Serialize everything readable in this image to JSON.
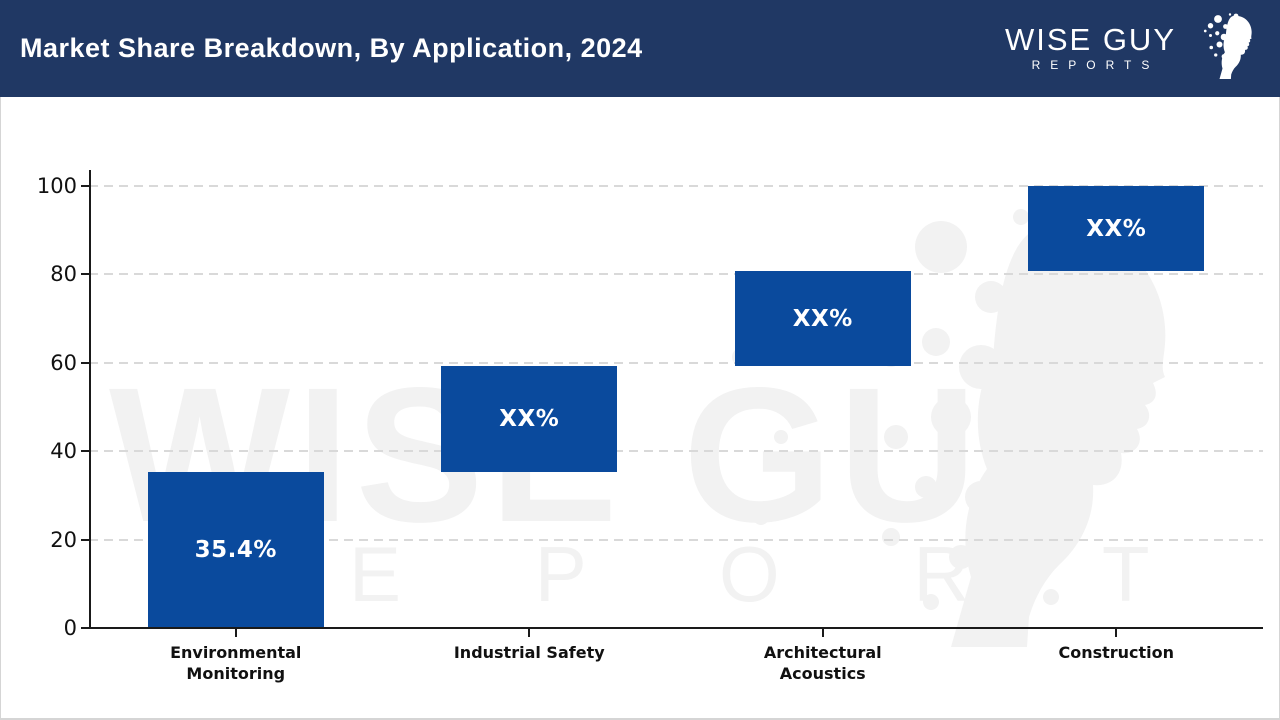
{
  "header": {
    "title": "Market Share Breakdown, By Application, 2024",
    "logo": {
      "name": "Wise Guy Reports",
      "line1": "WISE GUY",
      "line2": "REPORTS"
    }
  },
  "watermark": {
    "line1": "WISE GUY",
    "line2": "R E P O R T S"
  },
  "chart_data": {
    "type": "bar",
    "subtype": "waterfall",
    "title": "Market Share Breakdown, By Application, 2024",
    "xlabel": "",
    "ylabel": "",
    "categories": [
      "Environmental\nMonitoring",
      "Industrial Safety",
      "Architectural\nAcoustics",
      "Construction"
    ],
    "segments": [
      {
        "category": "Environmental Monitoring",
        "start": 0,
        "end": 35.4,
        "label": "35.4%"
      },
      {
        "category": "Industrial Safety",
        "start": 35.4,
        "end": 59.2,
        "label": "XX%"
      },
      {
        "category": "Architectural Acoustics",
        "start": 59.2,
        "end": 80.7,
        "label": "XX%"
      },
      {
        "category": "Construction",
        "start": 80.7,
        "end": 100,
        "label": "XX%"
      }
    ],
    "yticks": [
      0,
      20,
      40,
      60,
      80,
      100
    ],
    "ylim": [
      0,
      105
    ],
    "grid": "horizontal-dashed",
    "legend": "none",
    "colors": {
      "bar": "#0a4a9d",
      "bar_label": "#ffffff",
      "header_background": "#203864",
      "gridline": "#d9d9d9",
      "axis": "#1a1a1a",
      "watermark": "#f2f2f2"
    }
  }
}
